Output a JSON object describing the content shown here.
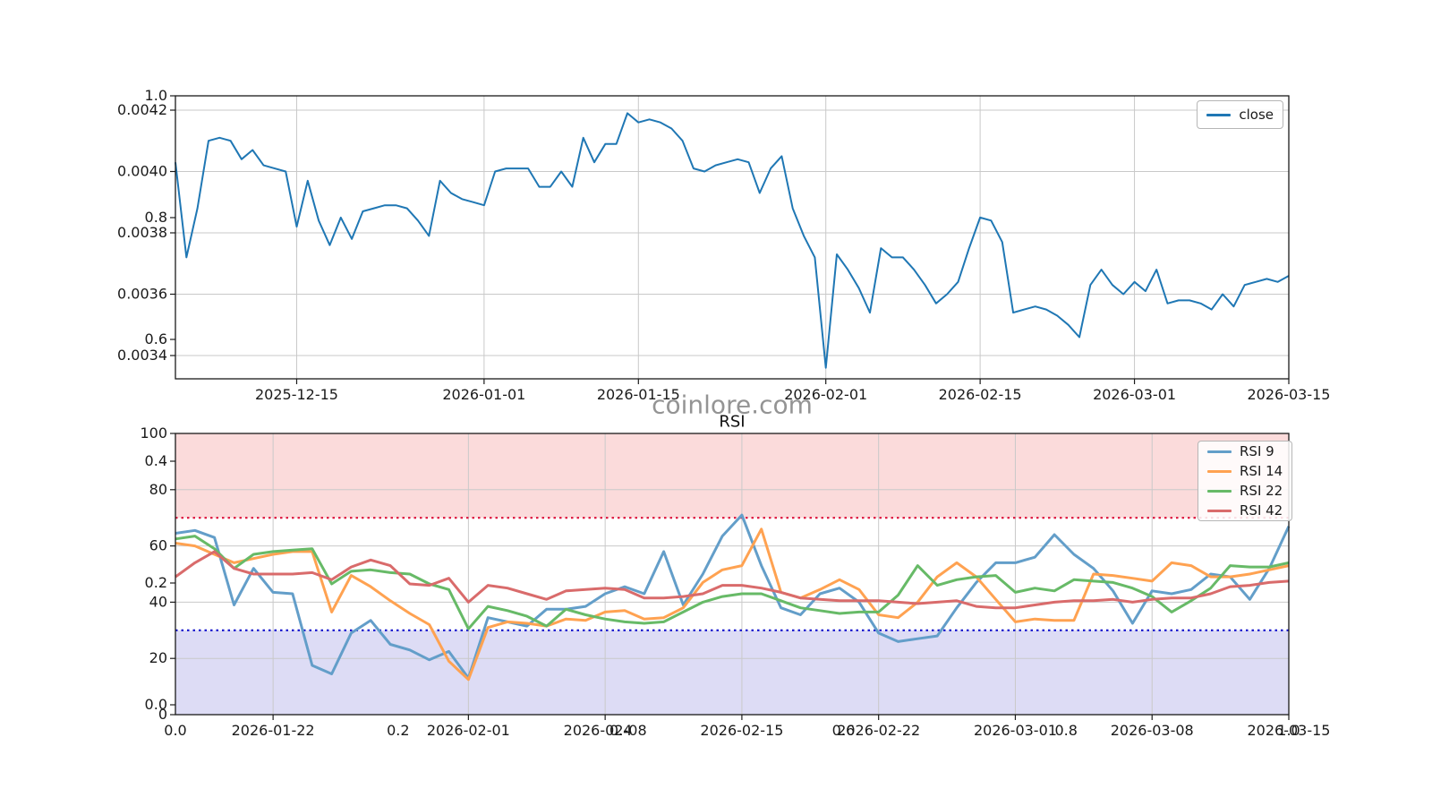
{
  "watermark": "coinlore.com",
  "styles": {
    "grid": "#c9c9c9",
    "spine": "#1a1a1a",
    "overbought_band": "#fbdbdb",
    "oversold_band": "#dddcf5",
    "overbought_line": "#dc143c",
    "oversold_line": "#1111cc",
    "watermark_color": "#8b8b8b"
  },
  "overlay_axis": {
    "y_labels": [
      {
        "label": "1.0",
        "f": 1.0
      },
      {
        "label": "0.8",
        "f": 0.8
      },
      {
        "label": "0.6",
        "f": 0.6
      },
      {
        "label": "0.4",
        "f": 0.4
      },
      {
        "label": "0.2",
        "f": 0.2
      },
      {
        "label": "0.0",
        "f": 0.0
      }
    ],
    "x_labels": [
      {
        "label": "0.0",
        "f": 0.0
      },
      {
        "label": "0.2",
        "f": 0.2
      },
      {
        "label": "0.4",
        "f": 0.4
      },
      {
        "label": "0.6",
        "f": 0.6
      },
      {
        "label": "0.8",
        "f": 0.8
      },
      {
        "label": "1.0",
        "f": 1.0
      }
    ]
  },
  "chart_data": [
    {
      "type": "line",
      "name": "price",
      "legend": {
        "label": "close",
        "position": "upper right"
      },
      "color": "#1f77b4",
      "start_date": "2025-12-04",
      "end_date": "2026-03-15",
      "ylim": [
        0.0033241,
        0.0042467
      ],
      "grid": true,
      "y_ticks": [
        {
          "label": "0.0042",
          "v": 0.0042
        },
        {
          "label": "0.0040",
          "v": 0.004
        },
        {
          "label": "0.0038",
          "v": 0.0038
        },
        {
          "label": "0.0036",
          "v": 0.0036
        },
        {
          "label": "0.0034",
          "v": 0.0034
        }
      ],
      "x_ticks": [
        {
          "label": "2025-12-15",
          "day": 11
        },
        {
          "label": "2026-01-01",
          "day": 28
        },
        {
          "label": "2026-01-15",
          "day": 42
        },
        {
          "label": "2026-02-01",
          "day": 59
        },
        {
          "label": "2026-02-15",
          "day": 73
        },
        {
          "label": "2026-03-01",
          "day": 87
        },
        {
          "label": "2026-03-15",
          "day": 101
        }
      ],
      "values": [
        0.00403,
        0.00372,
        0.00388,
        0.0041,
        0.00411,
        0.0041,
        0.00404,
        0.00407,
        0.00402,
        0.00401,
        0.004,
        0.00382,
        0.00397,
        0.00384,
        0.00376,
        0.00385,
        0.00378,
        0.00387,
        0.00388,
        0.00389,
        0.00389,
        0.00388,
        0.00384,
        0.00379,
        0.00397,
        0.00393,
        0.00391,
        0.0039,
        0.00389,
        0.004,
        0.00401,
        0.00401,
        0.00401,
        0.00395,
        0.00395,
        0.004,
        0.00395,
        0.00411,
        0.00403,
        0.00409,
        0.00409,
        0.00419,
        0.00416,
        0.00417,
        0.00416,
        0.00414,
        0.0041,
        0.00401,
        0.004,
        0.00402,
        0.00403,
        0.00404,
        0.00403,
        0.00393,
        0.00401,
        0.00405,
        0.00388,
        0.00379,
        0.00372,
        0.00336,
        0.00373,
        0.00368,
        0.00362,
        0.00354,
        0.00375,
        0.00372,
        0.00372,
        0.00368,
        0.00363,
        0.00357,
        0.0036,
        0.00364,
        0.00375,
        0.00385,
        0.00384,
        0.00377,
        0.00354,
        0.00355,
        0.00356,
        0.00355,
        0.00353,
        0.0035,
        0.00346,
        0.00363,
        0.00368,
        0.00363,
        0.0036,
        0.00364,
        0.00361,
        0.00368,
        0.00357,
        0.00358,
        0.00358,
        0.00357,
        0.00355,
        0.0036,
        0.00356,
        0.00363,
        0.00364,
        0.00365,
        0.00364,
        0.00366
      ]
    },
    {
      "type": "line",
      "name": "rsi",
      "title": "RSI",
      "start_date": "2026-01-17",
      "end_date": "2026-03-15",
      "ylim": [
        0,
        100
      ],
      "grid": true,
      "overbought_level": 70,
      "oversold_level": 30,
      "y_ticks": [
        {
          "label": "100",
          "v": 100
        },
        {
          "label": "80",
          "v": 80
        },
        {
          "label": "60",
          "v": 60
        },
        {
          "label": "40",
          "v": 40
        },
        {
          "label": "20",
          "v": 20
        },
        {
          "label": "0",
          "v": 0
        }
      ],
      "x_ticks": [
        {
          "label": "2026-01-22",
          "i": 5
        },
        {
          "label": "2026-02-01",
          "i": 15
        },
        {
          "label": "2026-02-08",
          "i": 22
        },
        {
          "label": "2026-02-15",
          "i": 29
        },
        {
          "label": "2026-02-22",
          "i": 36
        },
        {
          "label": "2026-03-01",
          "i": 43
        },
        {
          "label": "2026-03-08",
          "i": 50
        },
        {
          "label": "2026-03-15",
          "i": 57
        }
      ],
      "series": [
        {
          "name": "RSI 9",
          "color": "#639ec9",
          "values": [
            64.5,
            65.5,
            63,
            39,
            52,
            43.5,
            43,
            17.5,
            14.5,
            29,
            33.5,
            25,
            23,
            19.5,
            22.5,
            13,
            34.5,
            33,
            31.5,
            37.5,
            37.5,
            38.5,
            43,
            45.5,
            43,
            58,
            39,
            50,
            63.5,
            71,
            53,
            38,
            35.5,
            43,
            45,
            40,
            29,
            26,
            27,
            28,
            38,
            47,
            54,
            54,
            56,
            64,
            57,
            52,
            44,
            32.5,
            44,
            43,
            44.5,
            50,
            49,
            41,
            52,
            67
          ]
        },
        {
          "name": "RSI 14",
          "color": "#ffa251",
          "values": [
            61,
            60,
            57,
            54,
            55.5,
            57,
            58,
            58,
            36.5,
            49.5,
            45.5,
            40.5,
            36,
            32,
            19,
            12.5,
            31,
            33,
            32.5,
            31.5,
            34,
            33.5,
            36.5,
            37,
            34,
            34.5,
            38,
            47,
            51.5,
            53,
            66,
            43.5,
            41.5,
            44.5,
            48,
            44.5,
            35.5,
            34.5,
            40,
            49,
            54,
            49,
            41,
            33,
            34,
            33.5,
            33.5,
            50,
            49.5,
            48.5,
            47.5,
            54,
            53,
            49,
            49,
            50,
            51.5,
            53
          ]
        },
        {
          "name": "RSI 22",
          "color": "#67ba67",
          "values": [
            62.5,
            63.5,
            59,
            52,
            57,
            58,
            58.5,
            59,
            46.5,
            51,
            51.5,
            50.5,
            50,
            46.5,
            44.5,
            30.5,
            38.5,
            37,
            35,
            31.5,
            37.5,
            35.5,
            34,
            33,
            32.5,
            33,
            36.5,
            40,
            42,
            43,
            43,
            40.5,
            38,
            37,
            36,
            36.5,
            36.5,
            42.5,
            53,
            46,
            48,
            49,
            49.5,
            43.5,
            45,
            44,
            48,
            47.5,
            47,
            45,
            42,
            36.5,
            40.5,
            45,
            53,
            52.5,
            52.5,
            54
          ]
        },
        {
          "name": "RSI 42",
          "color": "#d96b6b",
          "values": [
            49,
            54,
            58,
            52,
            50,
            50,
            50,
            50.5,
            48,
            52.5,
            55,
            53,
            46.5,
            46,
            48.5,
            40,
            46,
            45,
            43,
            41,
            44,
            44.5,
            45,
            44.5,
            41.5,
            41.5,
            42,
            43,
            46,
            46,
            45,
            43.5,
            41.5,
            41,
            40.5,
            40.5,
            40.5,
            40,
            39.5,
            40,
            40.5,
            38.5,
            38,
            38,
            39,
            40,
            40.5,
            40.5,
            41,
            40,
            41,
            41.5,
            41.5,
            43,
            45.5,
            46,
            47,
            47.5
          ]
        }
      ]
    }
  ]
}
